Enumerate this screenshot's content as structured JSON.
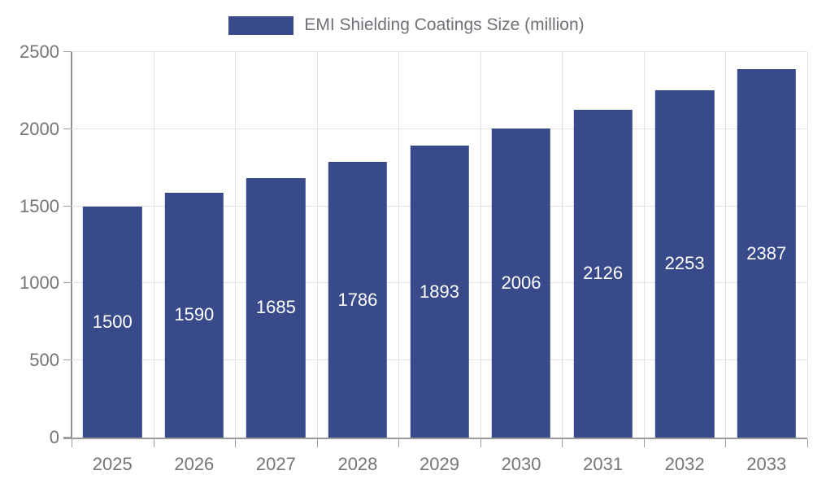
{
  "chart_data": {
    "type": "bar",
    "title": "EMI Shielding Coatings Size (million)",
    "legend": {
      "label": "EMI Shielding Coatings Size (million)",
      "position": "top-center"
    },
    "categories": [
      "2025",
      "2026",
      "2027",
      "2028",
      "2029",
      "2030",
      "2031",
      "2032",
      "2033"
    ],
    "values": [
      1500,
      1590,
      1685,
      1786,
      1893,
      2006,
      2126,
      2253,
      2387
    ],
    "xlabel": "",
    "ylabel": "",
    "ylim": [
      0,
      2500
    ],
    "yticks": [
      0,
      500,
      1000,
      1500,
      2000,
      2500
    ],
    "grid": true,
    "colors": {
      "bar": "#384a8a",
      "value_label": "#ffffff",
      "axis_line": "#9b9b9b",
      "gridline": "#e2e2e2",
      "tick_label": "#757575",
      "legend_text": "#6e7177",
      "background": "#ffffff"
    }
  }
}
